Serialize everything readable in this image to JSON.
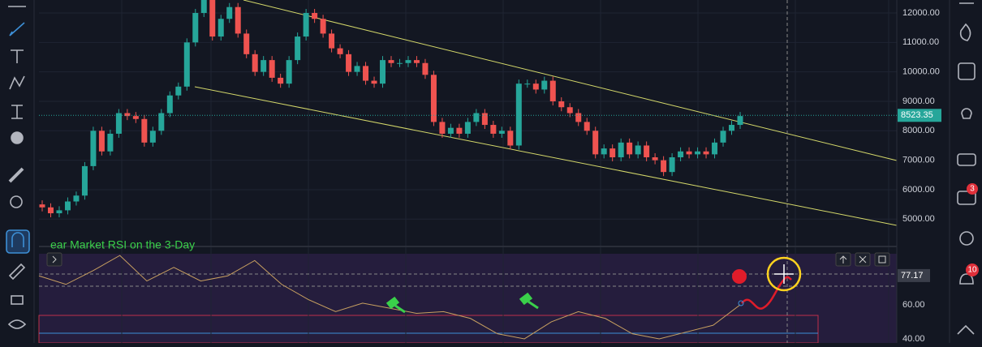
{
  "chart_data": {
    "type": "candlestick",
    "open": [
      5500,
      5400,
      5200,
      5300,
      5600,
      5800,
      6800,
      8000,
      7300,
      7900,
      8600,
      8500,
      8400,
      7600,
      8000,
      8600,
      9200,
      9500,
      11000,
      12000,
      12500,
      11200,
      11800,
      12200,
      11300,
      10600,
      10000,
      10400,
      9800,
      9600,
      10400,
      11200,
      12000,
      11800,
      11300,
      10800,
      10600,
      10000,
      10200,
      9700,
      9600,
      10400,
      10300,
      10300,
      10400,
      10300,
      9900,
      8300,
      7900,
      8100,
      7900,
      8300,
      8600,
      8200,
      7900,
      8000,
      7500,
      9600,
      9600,
      9400,
      9700,
      9000,
      8800,
      8600,
      8300,
      8000,
      7200,
      7400,
      7100,
      7600,
      7200,
      7500,
      7100,
      7000,
      6600,
      7100,
      7300,
      7200,
      7300,
      7200,
      7600,
      8000,
      8200
    ],
    "close": [
      5400,
      5200,
      5300,
      5600,
      5800,
      6800,
      8000,
      7300,
      7900,
      8600,
      8500,
      8400,
      7600,
      8000,
      8600,
      9200,
      9500,
      11000,
      12000,
      12500,
      11200,
      11800,
      12200,
      11300,
      10600,
      10000,
      10400,
      9800,
      9600,
      10400,
      11200,
      12000,
      11800,
      11300,
      10800,
      10600,
      10000,
      10200,
      9700,
      9600,
      10400,
      10300,
      10300,
      10400,
      10300,
      9900,
      8300,
      7900,
      8100,
      7900,
      8300,
      8600,
      8200,
      7900,
      8000,
      7500,
      9600,
      9600,
      9400,
      9700,
      9000,
      8800,
      8600,
      8300,
      8000,
      7200,
      7400,
      7100,
      7600,
      7200,
      7500,
      7100,
      7000,
      6600,
      7100,
      7300,
      7200,
      7300,
      7200,
      7600,
      8000,
      8200,
      8500
    ],
    "up_color": "#26a69a",
    "down_color": "#ef5350",
    "ylim": [
      4100,
      12440
    ],
    "yticks": [
      {
        "value": 5000,
        "label": "5000.00"
      },
      {
        "value": 6000,
        "label": "6000.00"
      },
      {
        "value": 7000,
        "label": "7000.00"
      },
      {
        "value": 8000,
        "label": "8000.00"
      },
      {
        "value": 9000,
        "label": "9000.00"
      },
      {
        "value": 10000,
        "label": "10000.00"
      },
      {
        "value": 11000,
        "label": "11000.00"
      },
      {
        "value": 12000,
        "label": "12000.00"
      }
    ],
    "last_price": {
      "value": 8523.35,
      "label": "8523.35"
    },
    "indicator": {
      "title": "ear Market RSI on the 3-Day",
      "color": "#c8a060",
      "values": [
        77,
        72,
        80,
        89,
        74,
        82,
        74,
        77,
        86,
        72,
        63,
        56,
        61,
        58,
        55,
        56,
        52,
        43,
        40,
        50,
        56,
        52,
        43,
        40,
        44,
        48,
        60
      ],
      "ylim": [
        37.6,
        93.8
      ],
      "yticks": [
        {
          "value": 40,
          "label": "40.00"
        },
        {
          "value": 60,
          "label": "60.00"
        }
      ],
      "current": {
        "value": 77.17,
        "label": "77.17"
      }
    },
    "badges": [
      "3",
      "10"
    ]
  }
}
